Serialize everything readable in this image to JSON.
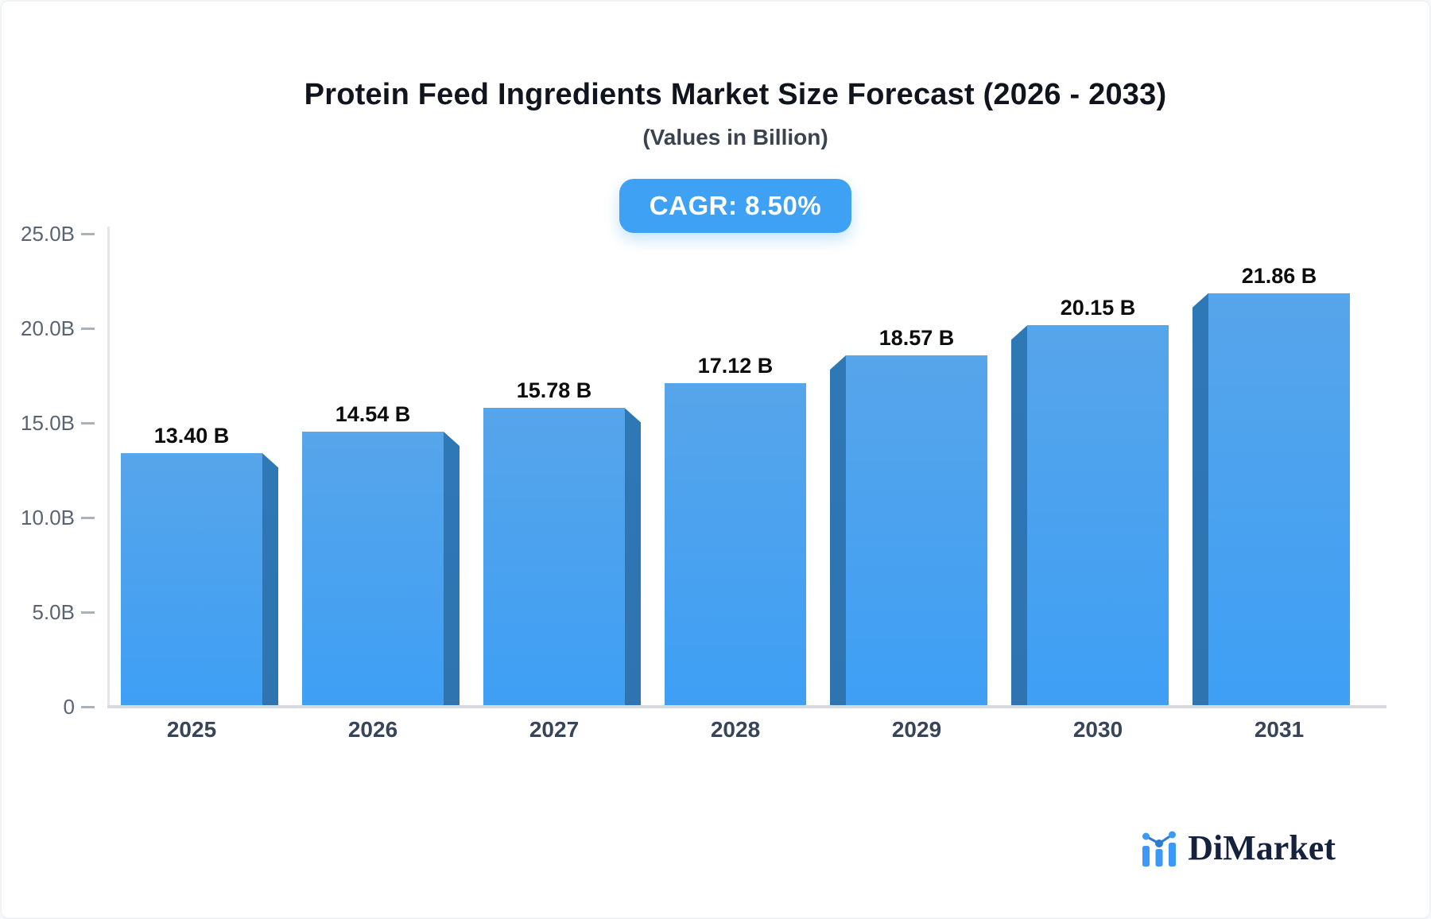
{
  "chart_data": {
    "type": "bar",
    "title": "Protein Feed Ingredients Market Size Forecast (2026 - 2033)",
    "subtitle": "(Values in Billion)",
    "cagr_badge": "CAGR: 8.50%",
    "categories": [
      "2025",
      "2026",
      "2027",
      "2028",
      "2029",
      "2030",
      "2031"
    ],
    "values": [
      13.4,
      14.54,
      15.78,
      17.12,
      18.57,
      20.15,
      21.86
    ],
    "value_labels": [
      "13.40 B",
      "14.54 B",
      "15.78 B",
      "17.12 B",
      "18.57 B",
      "20.15 B",
      "21.86 B"
    ],
    "xlabel": "",
    "ylabel": "",
    "ylim": [
      0,
      25
    ],
    "y_ticks": [
      {
        "label": "25.0B",
        "value": 25
      },
      {
        "label": "20.0B",
        "value": 20
      },
      {
        "label": "15.0B",
        "value": 15
      },
      {
        "label": "10.0B",
        "value": 10
      },
      {
        "label": "5.0B",
        "value": 5
      },
      {
        "label": "0",
        "value": 0
      }
    ],
    "grid": "off",
    "legend": "none",
    "bar_style": "3d-block",
    "colors": {
      "bar_face_top": "#57a5ea",
      "bar_face_bottom": "#3e9ff4",
      "bar_side": "#2e74b0",
      "badge_background": "#3fa1f3",
      "badge_text": "#ffffff",
      "title_text": "#10141c",
      "axis_line": "#d7dade",
      "tick_text": "#5a6372"
    }
  },
  "logo": {
    "text": "DiMarket",
    "icon": "mini-bar-chart-icon",
    "navy": "#16213e",
    "blue": "#3b9af8",
    "accent": "#2a7cd0"
  }
}
